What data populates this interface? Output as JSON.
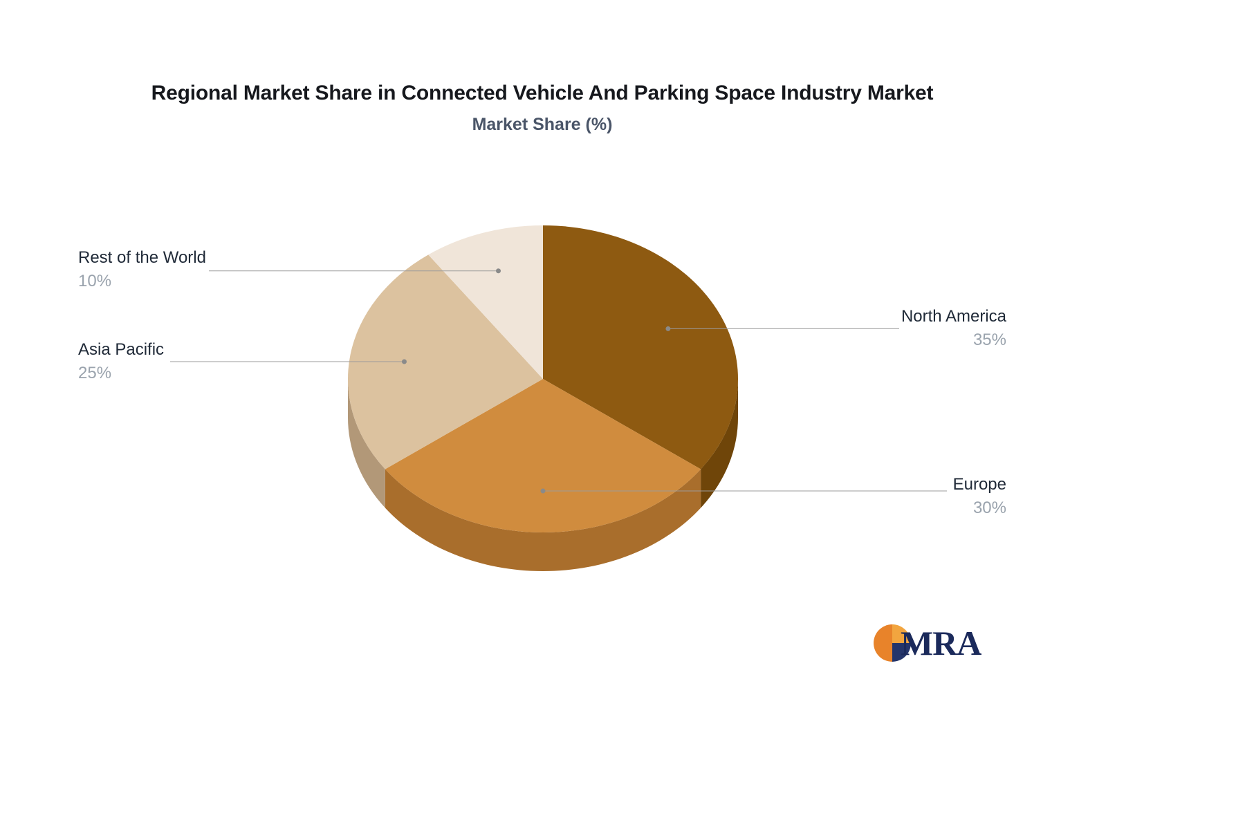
{
  "header": {
    "title": "Regional Market Share in Connected Vehicle And Parking Space Industry Market",
    "subtitle": "Market Share (%)"
  },
  "chart_data": {
    "type": "pie",
    "style": "3d",
    "title": "Regional Market Share in Connected Vehicle And Parking Space Industry Market",
    "subtitle": "Market Share (%)",
    "unit": "%",
    "labels": [
      "North America",
      "Europe",
      "Asia Pacific",
      "Rest of the World"
    ],
    "values": [
      35,
      30,
      25,
      10
    ],
    "display_values": [
      "35%",
      "30%",
      "25%",
      "10%"
    ],
    "colors": [
      "#8e5a11",
      "#d08c3e",
      "#dcc29f",
      "#f0e5d9"
    ],
    "side_colors": [
      "#6f4509",
      "#a96e2c",
      "#b29878",
      "#cbb99f"
    ],
    "start_angle_deg": 0,
    "direction": "clockwise",
    "legend_position": "callout-labels",
    "label_text_color": "#1f2937",
    "value_text_color": "#9aa3ad"
  },
  "logo": {
    "text": "MRA",
    "colors": {
      "orange": "#e8832a",
      "light_orange": "#f2a53f",
      "navy": "#24356b"
    }
  }
}
